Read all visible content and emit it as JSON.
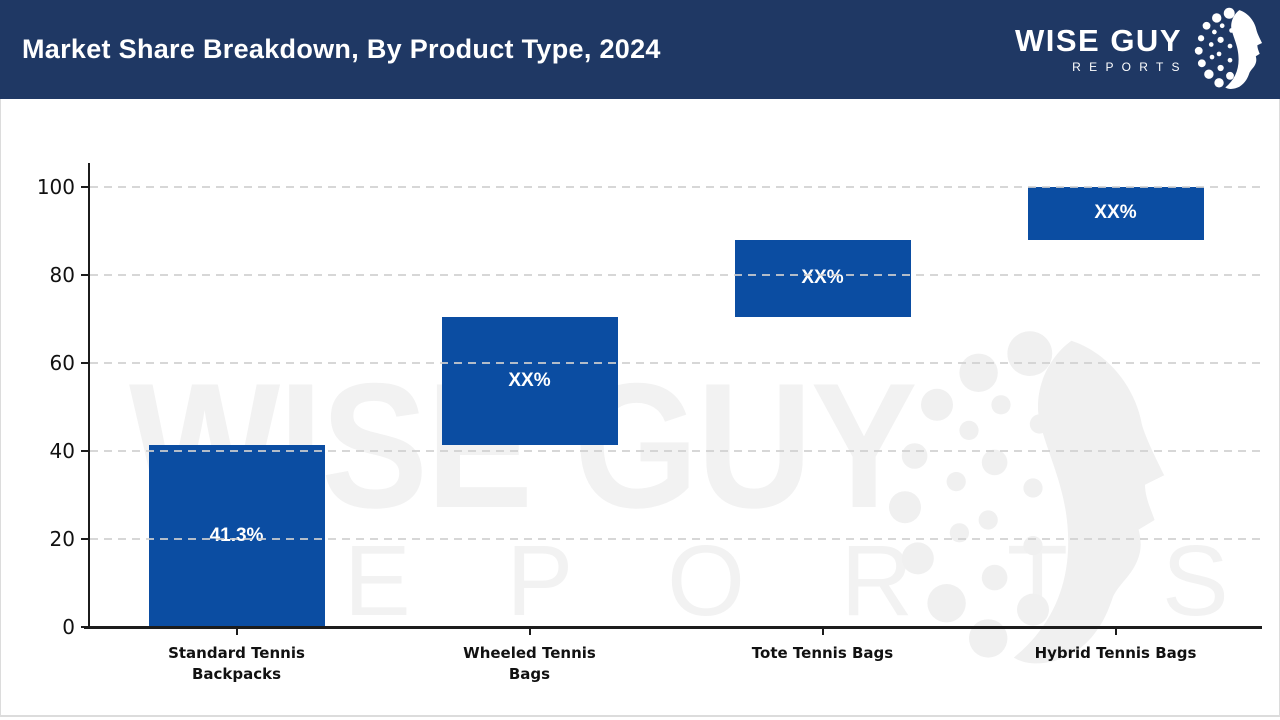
{
  "header": {
    "title": "Market Share Breakdown, By Product Type, 2024",
    "background_color": "#1f3864",
    "text_color": "#ffffff",
    "logo": {
      "line1": "WISE GUY",
      "line2": "R E P O R T S"
    }
  },
  "watermark": {
    "line1": "WISE GUY",
    "line2": "R E P O R T S",
    "color": "#f2f2f2"
  },
  "chart_data": {
    "type": "bar",
    "subtype": "waterfall",
    "title": "Market Share Breakdown, By Product Type, 2024",
    "categories": [
      "Standard Tennis Backpacks",
      "Wheeled Tennis Bags",
      "Tote Tennis Bags",
      "Hybrid Tennis Bags"
    ],
    "category_lines": [
      [
        "Standard Tennis",
        "Backpacks"
      ],
      [
        "Wheeled Tennis",
        "Bags"
      ],
      [
        "Tote Tennis Bags"
      ],
      [
        "Hybrid Tennis Bags"
      ]
    ],
    "bars": [
      {
        "category": "Standard Tennis Backpacks",
        "label": "41.3%",
        "start": 0,
        "end": 41.3
      },
      {
        "category": "Wheeled Tennis Bags",
        "label": "XX%",
        "start": 41.3,
        "end": 70.6
      },
      {
        "category": "Tote Tennis Bags",
        "label": "XX%",
        "start": 70.6,
        "end": 88.1
      },
      {
        "category": "Hybrid Tennis Bags",
        "label": "XX%",
        "start": 88.1,
        "end": 100
      }
    ],
    "y_ticks": [
      0,
      20,
      40,
      60,
      80,
      100
    ],
    "ylim": [
      0,
      105.5
    ],
    "xlabel": "",
    "ylabel": "",
    "grid": "horizontal dashed, drawn over bars",
    "legend": "none",
    "bar_color": "#0b4da2",
    "bar_label_color": "#ffffff",
    "axis_color": "#1c1c1c"
  }
}
